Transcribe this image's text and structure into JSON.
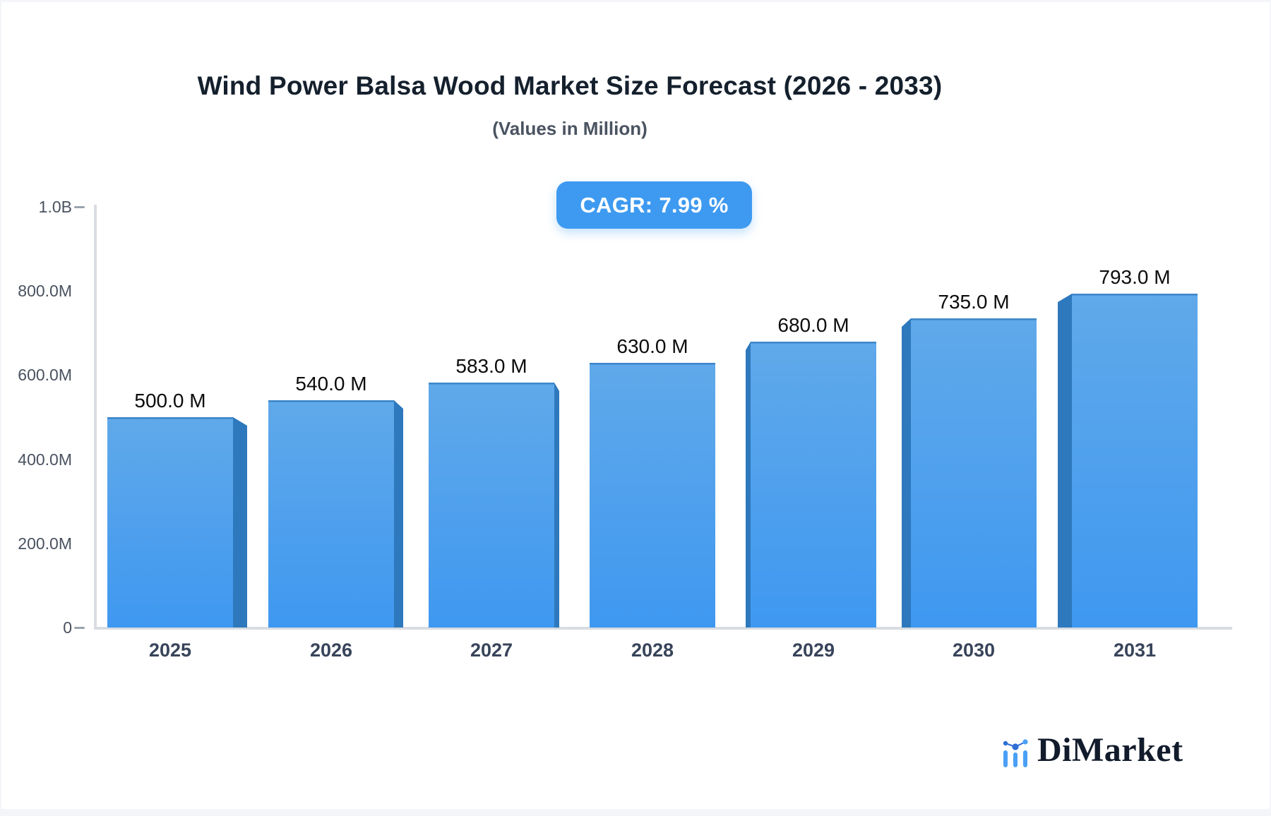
{
  "header": {
    "title": "Wind Power Balsa Wood Market Size Forecast (2026 - 2033)",
    "subtitle": "(Values in Million)"
  },
  "badge": {
    "label": "CAGR: 7.99 %"
  },
  "footer": {
    "brand": "DiMarket"
  },
  "colors": {
    "accent": "#3e9af0",
    "bar_gradient_top": "#60a9ea",
    "bar_gradient_bottom": "#3f98f0",
    "bar_side": "#2e78bd",
    "bar_top_edge": "#3f87ca",
    "axis": "#d9dce2",
    "tick_dash": "#9aa3ad",
    "badge_text": "#ffffff"
  },
  "chart_data": {
    "type": "bar",
    "title": "Wind Power Balsa Wood Market Size Forecast (2026 - 2033)",
    "subtitle": "(Values in Million)",
    "unit": "Million",
    "cagr": "7.99 %",
    "bar_style": "3d",
    "grid": "off",
    "legend": "none",
    "categories": [
      "2025",
      "2026",
      "2027",
      "2028",
      "2029",
      "2030",
      "2031"
    ],
    "values": [
      500,
      540,
      583,
      630,
      680,
      735,
      793
    ],
    "value_labels": [
      "500.0 M",
      "540.0 M",
      "583.0 M",
      "630.0 M",
      "680.0 M",
      "735.0 M",
      "793.0 M"
    ],
    "xlabel": "",
    "ylabel": "",
    "ylim": [
      0,
      1000
    ],
    "ytick_values": [
      0,
      200,
      400,
      600,
      800,
      1000
    ],
    "ytick_labels": [
      "0",
      "200.0M",
      "400.0M",
      "600.0M",
      "800.0M",
      "1.0B"
    ]
  }
}
